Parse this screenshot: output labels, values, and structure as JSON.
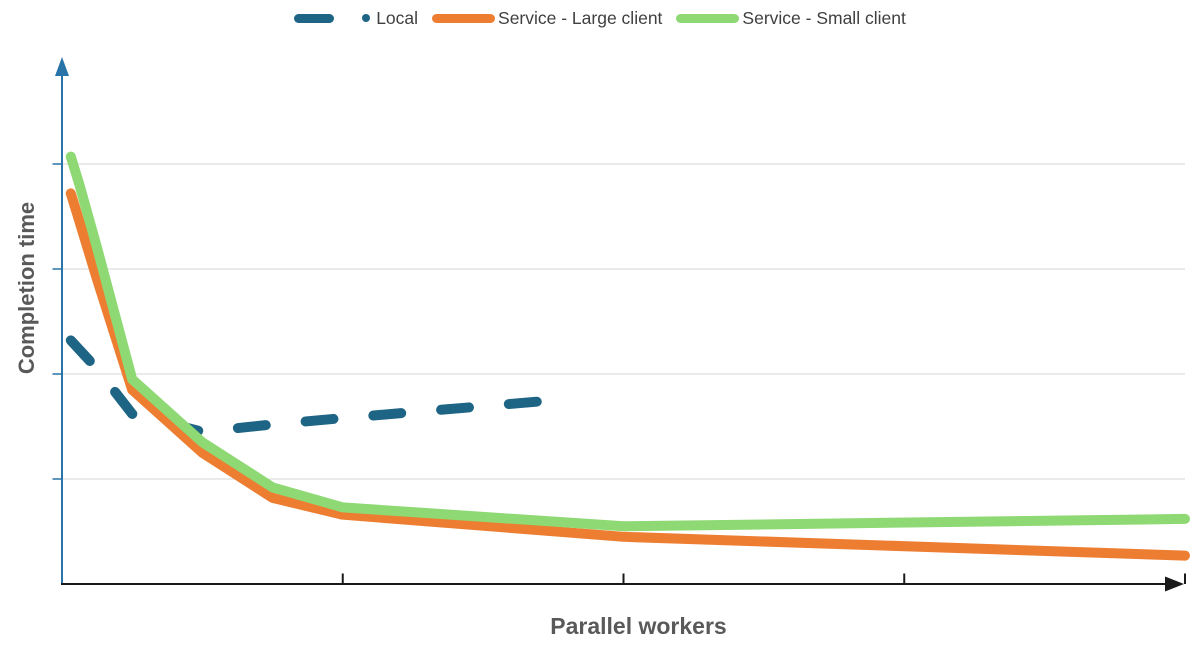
{
  "page": {
    "background": "#FFFFFF"
  },
  "chart_data": {
    "type": "line",
    "title": "",
    "xlabel": "Parallel workers",
    "ylabel": "Completion time",
    "x_axis": {
      "min": 0,
      "max": 128,
      "ticks": [
        32,
        64,
        96,
        128
      ],
      "numeric_labels_visible": false,
      "arrow": true
    },
    "y_axis": {
      "min": 0,
      "max": 5,
      "ticks": [
        1,
        2,
        3,
        4
      ],
      "gridlines": [
        1,
        2,
        3,
        4
      ],
      "numeric_labels_visible": false,
      "arrow": true
    },
    "grid": "horizontal-only",
    "legend_position": "top-center",
    "series": [
      {
        "name": "Local",
        "color": "#1E6484",
        "line_style": "dashed",
        "points": [
          [
            1,
            2.32
          ],
          [
            4,
            2.05
          ],
          [
            8,
            1.62
          ],
          [
            16,
            1.45
          ],
          [
            24,
            1.52
          ],
          [
            32,
            1.58
          ],
          [
            56,
            1.75
          ]
        ]
      },
      {
        "name": "Service - Large client",
        "color": "#ED7D31",
        "line_style": "solid",
        "points": [
          [
            1,
            3.72
          ],
          [
            2,
            3.45
          ],
          [
            4,
            2.9
          ],
          [
            8,
            1.85
          ],
          [
            16,
            1.25
          ],
          [
            24,
            0.82
          ],
          [
            32,
            0.66
          ],
          [
            64,
            0.45
          ],
          [
            128,
            0.27
          ]
        ]
      },
      {
        "name": "Service - Small client",
        "color": "#8ED973",
        "line_style": "solid",
        "points": [
          [
            1,
            4.07
          ],
          [
            2,
            3.8
          ],
          [
            4,
            3.2
          ],
          [
            8,
            1.95
          ],
          [
            16,
            1.35
          ],
          [
            24,
            0.92
          ],
          [
            32,
            0.73
          ],
          [
            64,
            0.55
          ],
          [
            128,
            0.62
          ]
        ]
      }
    ],
    "colors": {
      "x_axis": "#1A1A1A",
      "y_axis": "#2873A8",
      "gridline": "#E4E4E4",
      "axis_title_text": "#595959",
      "legend_text": "#404040"
    }
  }
}
